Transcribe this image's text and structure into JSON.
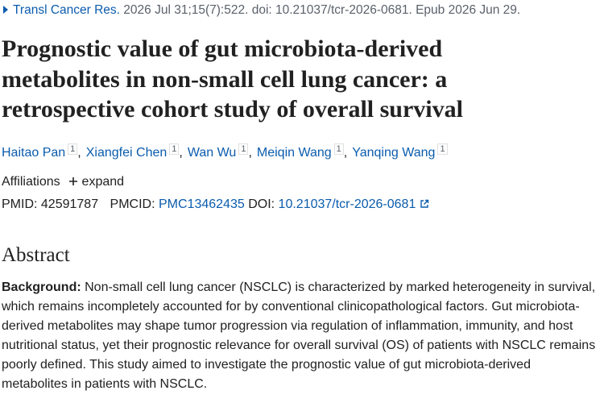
{
  "citation": {
    "journal": "Transl Cancer Res.",
    "details": "2026 Jul 31;15(7):522. doi: 10.21037/tcr-2026-0681. Epub 2026 Jun 29."
  },
  "title": "Prognostic value of gut microbiota-derived metabolites in non-small cell lung cancer: a retrospective cohort study of overall survival",
  "authors": [
    {
      "name": "Haitao Pan",
      "affiliation": "1"
    },
    {
      "name": "Xiangfei Chen",
      "affiliation": "1"
    },
    {
      "name": "Wan Wu",
      "affiliation": "1"
    },
    {
      "name": "Meiqin Wang",
      "affiliation": "1"
    },
    {
      "name": "Yanqing Wang",
      "affiliation": "1"
    }
  ],
  "authors_separator": ",",
  "affiliations": {
    "label": "Affiliations",
    "toggle": "expand"
  },
  "identifiers": {
    "pmid_label": "PMID:",
    "pmid": "42591787",
    "pmcid_label": "PMCID:",
    "pmcid": "PMC13462435",
    "doi_label": "DOI:",
    "doi": "10.21037/tcr-2026-0681"
  },
  "abstract": {
    "heading": "Abstract",
    "background_label": "Background:",
    "background": "Non-small cell lung cancer (NSCLC) is characterized by marked heterogeneity in survival, which remains incompletely accounted for by conventional clinicopathological factors. Gut microbiota-derived metabolites may shape tumor progression via regulation of inflammation, immunity, and host nutritional status, yet their prognostic relevance for overall survival (OS) of patients with NSCLC remains poorly defined. This study aimed to investigate the prognostic value of gut microbiota-derived metabolites in patients with NSCLC."
  }
}
